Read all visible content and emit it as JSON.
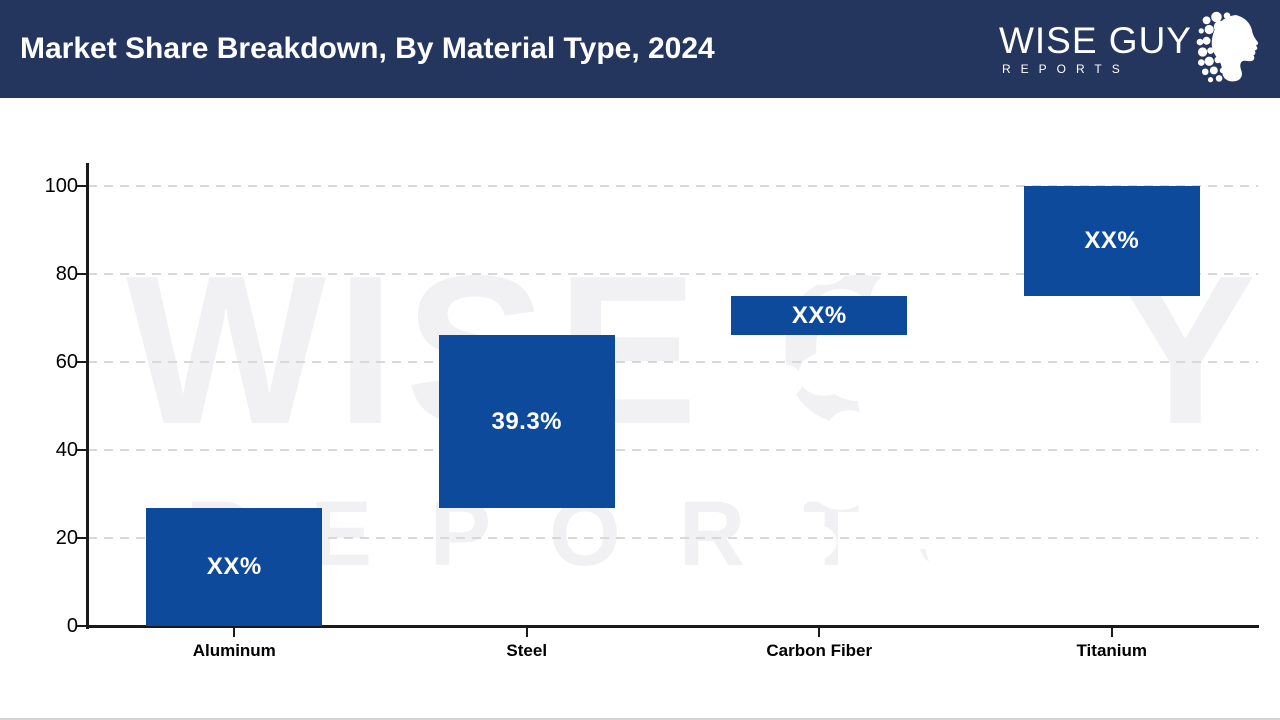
{
  "header": {
    "title": "Market Share Breakdown, By Material Type, 2024",
    "logo": {
      "line1": "WISE GUY",
      "line2": "REPORTS"
    }
  },
  "watermark": {
    "line1": "WISE GUY",
    "line2": "REPORTS"
  },
  "colors": {
    "header_bg": "#24365e",
    "bar_fill": "#0d4a9c",
    "bar_label_text": "#ffffff",
    "grid_line": "#d8d8d8",
    "axis_line": "#1a1a1a",
    "tick_label_text": "#000000",
    "watermark_gray": "#f1f1f3"
  },
  "chart_data": {
    "type": "bar",
    "subtype": "floating-waterfall",
    "title": "Market Share Breakdown, By Material Type, 2024",
    "categories": [
      "Aluminum",
      "Steel",
      "Carbon Fiber",
      "Titanium"
    ],
    "segments": [
      {
        "category": "Aluminum",
        "start": 0,
        "end": 26.8,
        "label": "XX%"
      },
      {
        "category": "Steel",
        "start": 26.8,
        "end": 66.1,
        "label": "39.3%"
      },
      {
        "category": "Carbon Fiber",
        "start": 66.1,
        "end": 75.0,
        "label": "XX%"
      },
      {
        "category": "Titanium",
        "start": 75.0,
        "end": 100.0,
        "label": "XX%"
      }
    ],
    "note": "Only the Steel segment shows a numeric value (39.3%); other segment labels are masked as XX%",
    "xlabel": "",
    "ylabel": "",
    "ylim": [
      0,
      100
    ],
    "yticks": [
      0,
      20,
      40,
      60,
      80,
      100
    ],
    "grid": "horizontal-dashed",
    "legend": "none"
  }
}
